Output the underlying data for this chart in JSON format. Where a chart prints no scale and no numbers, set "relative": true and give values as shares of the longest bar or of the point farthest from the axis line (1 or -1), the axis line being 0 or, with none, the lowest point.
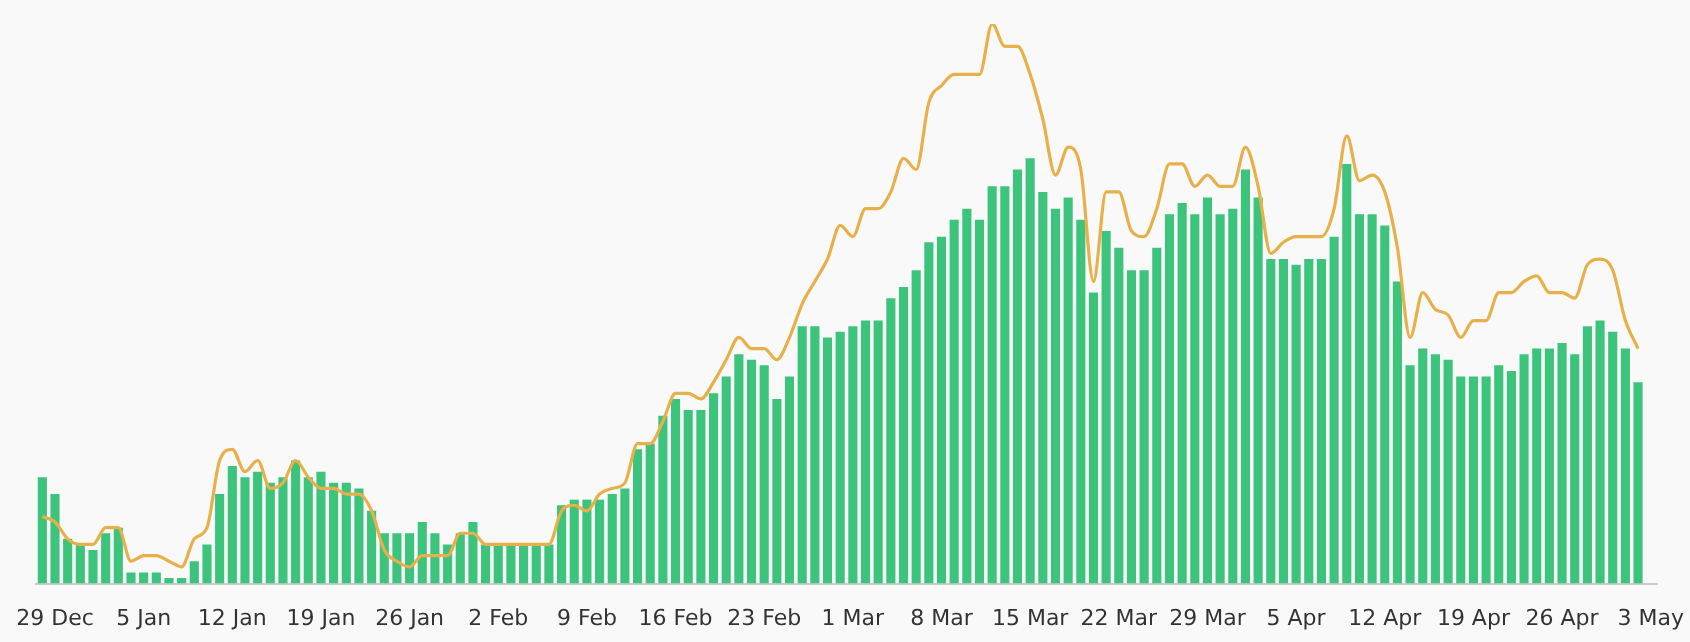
{
  "chart_data": {
    "type": "bar",
    "relative": true,
    "categories": [
      null,
      "29 Dec",
      null,
      null,
      null,
      null,
      null,
      null,
      "5 Jan",
      null,
      null,
      null,
      null,
      null,
      null,
      "12 Jan",
      null,
      null,
      null,
      null,
      null,
      null,
      "19 Jan",
      null,
      null,
      null,
      null,
      null,
      null,
      "26 Jan",
      null,
      null,
      null,
      null,
      null,
      null,
      "2 Feb",
      null,
      null,
      null,
      null,
      null,
      null,
      "9 Feb",
      null,
      null,
      null,
      null,
      null,
      null,
      "16 Feb",
      null,
      null,
      null,
      null,
      null,
      null,
      "23 Feb",
      null,
      null,
      null,
      null,
      null,
      null,
      "1 Mar",
      null,
      null,
      null,
      null,
      null,
      null,
      "8 Mar",
      null,
      null,
      null,
      null,
      null,
      null,
      "15 Mar",
      null,
      null,
      null,
      null,
      null,
      null,
      "22 Mar",
      null,
      null,
      null,
      null,
      null,
      null,
      "29 Mar",
      null,
      null,
      null,
      null,
      null,
      null,
      "5 Apr",
      null,
      null,
      null,
      null,
      null,
      null,
      "12 Apr",
      null,
      null,
      null,
      null,
      null,
      null,
      "19 Apr",
      null,
      null,
      null,
      null,
      null,
      null,
      "26 Apr",
      null,
      null,
      null,
      null,
      null,
      null,
      "3 May"
    ],
    "series": [
      {
        "color": "#3cc47c",
        "values": [
          0.19,
          0.16,
          0.08,
          0.07,
          0.06,
          0.09,
          0.1,
          0.02,
          0.02,
          0.02,
          0.01,
          0.01,
          0.04,
          0.07,
          0.16,
          0.21,
          0.19,
          0.2,
          0.18,
          0.19,
          0.22,
          0.19,
          0.2,
          0.18,
          0.18,
          0.17,
          0.13,
          0.09,
          0.09,
          0.09,
          0.11,
          0.09,
          0.07,
          0.09,
          0.11,
          0.07,
          0.07,
          0.07,
          0.07,
          0.07,
          0.07,
          0.14,
          0.15,
          0.15,
          0.15,
          0.16,
          0.17,
          0.24,
          0.25,
          0.3,
          0.33,
          0.31,
          0.31,
          0.34,
          0.37,
          0.41,
          0.4,
          0.39,
          0.33,
          0.37,
          0.46,
          0.46,
          0.44,
          0.45,
          0.46,
          0.47,
          0.47,
          0.51,
          0.53,
          0.56,
          0.61,
          0.62,
          0.65,
          0.67,
          0.65,
          0.71,
          0.71,
          0.74,
          0.76,
          0.7,
          0.67,
          0.69,
          0.65,
          0.52,
          0.63,
          0.6,
          0.56,
          0.56,
          0.6,
          0.66,
          0.68,
          0.66,
          0.69,
          0.66,
          0.67,
          0.74,
          0.69,
          0.58,
          0.58,
          0.57,
          0.58,
          0.58,
          0.62,
          0.75,
          0.66,
          0.66,
          0.64,
          0.54,
          0.39,
          0.42,
          0.41,
          0.4,
          0.37,
          0.37,
          0.37,
          0.39,
          0.38,
          0.41,
          0.42,
          0.42,
          0.43,
          0.41,
          0.46,
          0.47,
          0.45,
          0.42,
          0.36,
          null
        ]
      },
      {
        "type": "line",
        "color": "#e8b04a",
        "values": [
          0.12,
          0.11,
          0.08,
          0.07,
          0.07,
          0.1,
          0.1,
          0.04,
          0.05,
          0.05,
          0.04,
          0.03,
          0.08,
          0.1,
          0.22,
          0.24,
          0.2,
          0.22,
          0.17,
          0.18,
          0.22,
          0.19,
          0.17,
          0.17,
          0.16,
          0.16,
          0.13,
          0.06,
          0.04,
          0.03,
          0.05,
          0.05,
          0.05,
          0.09,
          0.09,
          0.07,
          0.07,
          0.07,
          0.07,
          0.07,
          0.07,
          0.13,
          0.14,
          0.13,
          0.16,
          0.17,
          0.18,
          0.25,
          0.25,
          0.29,
          0.34,
          0.34,
          0.33,
          0.36,
          0.4,
          0.44,
          0.42,
          0.42,
          0.4,
          0.44,
          0.5,
          0.54,
          0.58,
          0.64,
          0.62,
          0.67,
          0.67,
          0.7,
          0.76,
          0.74,
          0.86,
          0.89,
          0.91,
          0.91,
          0.91,
          1,
          0.96,
          0.96,
          0.91,
          0.83,
          0.73,
          0.78,
          0.74,
          0.54,
          0.7,
          0.7,
          0.63,
          0.62,
          0.67,
          0.75,
          0.75,
          0.71,
          0.73,
          0.71,
          0.71,
          0.78,
          0.71,
          0.59,
          0.61,
          0.62,
          0.62,
          0.62,
          0.67,
          0.8,
          0.72,
          0.73,
          0.7,
          0.6,
          0.44,
          0.52,
          0.49,
          0.48,
          0.44,
          0.47,
          0.47,
          0.52,
          0.52,
          0.54,
          0.55,
          0.52,
          0.52,
          0.51,
          0.57,
          0.58,
          0.56,
          0.47,
          0.42,
          null
        ]
      }
    ]
  }
}
